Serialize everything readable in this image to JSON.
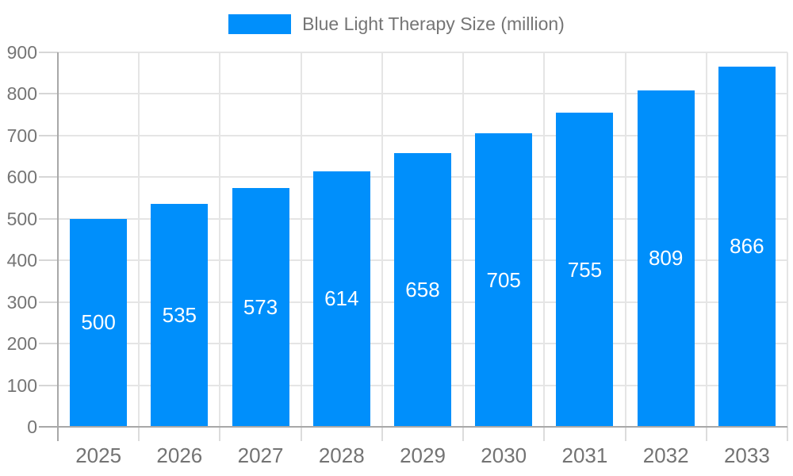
{
  "chart_data": {
    "type": "bar",
    "categories": [
      "2025",
      "2026",
      "2027",
      "2028",
      "2029",
      "2030",
      "2031",
      "2032",
      "2033"
    ],
    "series": [
      {
        "name": "Blue Light Therapy Size (million)",
        "values": [
          500,
          535,
          573,
          614,
          658,
          705,
          755,
          809,
          866
        ]
      }
    ],
    "xlabel": "",
    "ylabel": "",
    "ylim": [
      0,
      900
    ],
    "yticks": [
      0,
      100,
      200,
      300,
      400,
      500,
      600,
      700,
      800,
      900
    ],
    "grid": true,
    "legend_position": "top",
    "value_labels": "inside-center",
    "colors": {
      "bar": "#008FFB",
      "grid": "#e5e5e5",
      "axis": "#a8a8a8",
      "tick_label": "#757575",
      "value_label": "#ffffff",
      "legend_text": "#757575"
    }
  }
}
